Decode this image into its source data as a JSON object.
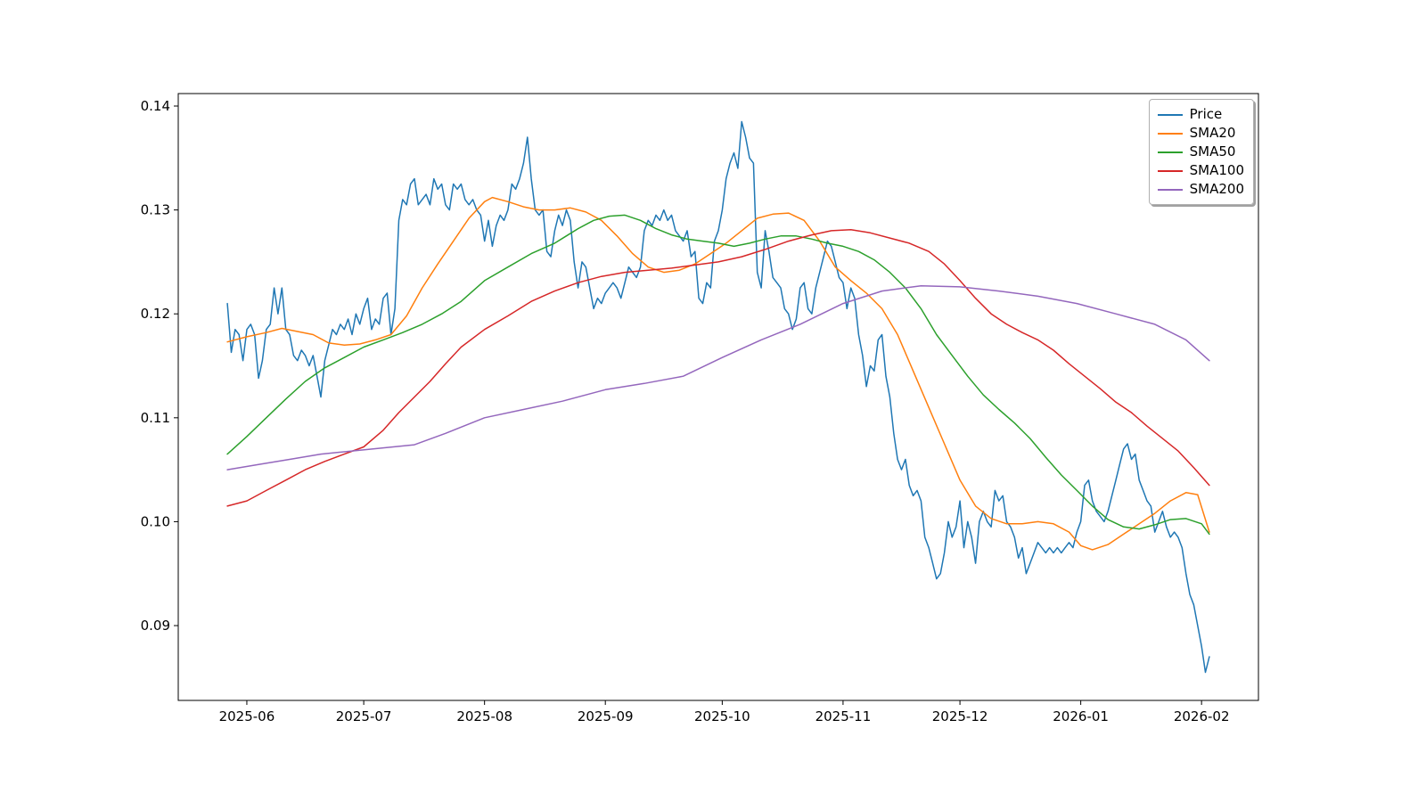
{
  "window": {
    "background": "#ffffff"
  },
  "chart_data": {
    "type": "line",
    "title": "",
    "xlabel": "",
    "ylabel": "",
    "x_axis": {
      "unit": "days",
      "day_zero_date": "2025-05-27",
      "tick_format": "YYYY-MM"
    },
    "xlim": [
      -12.6,
      264.6
    ],
    "ylim": [
      0.0828,
      0.1412
    ],
    "grid": false,
    "frame_color": "#000000",
    "x_ticks": [
      {
        "day": 5,
        "label": "2025-06"
      },
      {
        "day": 35,
        "label": "2025-07"
      },
      {
        "day": 66,
        "label": "2025-08"
      },
      {
        "day": 97,
        "label": "2025-09"
      },
      {
        "day": 127,
        "label": "2025-10"
      },
      {
        "day": 158,
        "label": "2025-11"
      },
      {
        "day": 188,
        "label": "2025-12"
      },
      {
        "day": 219,
        "label": "2026-01"
      },
      {
        "day": 250,
        "label": "2026-02"
      }
    ],
    "y_ticks": [
      {
        "value": 0.09,
        "label": "0.09"
      },
      {
        "value": 0.1,
        "label": "0.10"
      },
      {
        "value": 0.11,
        "label": "0.11"
      },
      {
        "value": 0.12,
        "label": "0.12"
      },
      {
        "value": 0.13,
        "label": "0.13"
      },
      {
        "value": 0.14,
        "label": "0.14"
      }
    ],
    "legend": {
      "position": "upper-right",
      "entries": [
        "Price",
        "SMA20",
        "SMA50",
        "SMA100",
        "SMA200"
      ]
    },
    "series": [
      {
        "name": "Price",
        "color": "#1f77b4",
        "values": [
          0.121,
          0.1163,
          0.1185,
          0.118,
          0.1155,
          0.1185,
          0.119,
          0.118,
          0.1138,
          0.1155,
          0.1185,
          0.119,
          0.1225,
          0.12,
          0.1225,
          0.1185,
          0.118,
          0.116,
          0.1155,
          0.1165,
          0.116,
          0.115,
          0.116,
          0.114,
          0.112,
          0.1155,
          0.117,
          0.1185,
          0.118,
          0.119,
          0.1185,
          0.1195,
          0.118,
          0.12,
          0.119,
          0.1205,
          0.1215,
          0.1185,
          0.1195,
          0.119,
          0.1215,
          0.122,
          0.118,
          0.1205,
          0.129,
          0.131,
          0.1305,
          0.1325,
          0.133,
          0.1305,
          0.131,
          0.1315,
          0.1305,
          0.133,
          0.132,
          0.1325,
          0.1305,
          0.13,
          0.1325,
          0.132,
          0.1325,
          0.131,
          0.1305,
          0.131,
          0.13,
          0.1295,
          0.127,
          0.129,
          0.1265,
          0.1285,
          0.1295,
          0.129,
          0.13,
          0.1325,
          0.132,
          0.133,
          0.1345,
          0.137,
          0.133,
          0.13,
          0.1295,
          0.13,
          0.126,
          0.1255,
          0.128,
          0.1295,
          0.1285,
          0.13,
          0.129,
          0.125,
          0.1225,
          0.125,
          0.1245,
          0.1225,
          0.1205,
          0.1215,
          0.121,
          0.122,
          0.1225,
          0.123,
          0.1225,
          0.1215,
          0.123,
          0.1245,
          0.124,
          0.1235,
          0.1245,
          0.128,
          0.129,
          0.1285,
          0.1295,
          0.129,
          0.13,
          0.129,
          0.1295,
          0.128,
          0.1275,
          0.127,
          0.128,
          0.1255,
          0.126,
          0.1215,
          0.121,
          0.123,
          0.1225,
          0.127,
          0.128,
          0.13,
          0.133,
          0.1345,
          0.1355,
          0.134,
          0.1385,
          0.137,
          0.135,
          0.1345,
          0.124,
          0.1225,
          0.128,
          0.126,
          0.1235,
          0.123,
          0.1225,
          0.1205,
          0.12,
          0.1185,
          0.1195,
          0.1225,
          0.123,
          0.1205,
          0.12,
          0.1225,
          0.124,
          0.1255,
          0.127,
          0.1265,
          0.125,
          0.1235,
          0.123,
          0.1205,
          0.1225,
          0.1215,
          0.118,
          0.116,
          0.113,
          0.115,
          0.1145,
          0.1175,
          0.118,
          0.114,
          0.112,
          0.1085,
          0.106,
          0.105,
          0.106,
          0.1035,
          0.1025,
          0.103,
          0.102,
          0.0985,
          0.0975,
          0.096,
          0.0945,
          0.095,
          0.097,
          0.1,
          0.0985,
          0.0995,
          0.102,
          0.0975,
          0.1,
          0.0985,
          0.096,
          0.1,
          0.101,
          0.1,
          0.0995,
          0.103,
          0.102,
          0.1025,
          0.1,
          0.0995,
          0.0985,
          0.0965,
          0.0975,
          0.095,
          0.096,
          0.097,
          0.098,
          0.0975,
          0.097,
          0.0975,
          0.097,
          0.0975,
          0.097,
          0.0975,
          0.098,
          0.0975,
          0.099,
          0.1,
          0.1035,
          0.104,
          0.102,
          0.101,
          0.1005,
          0.1,
          0.101,
          0.1025,
          0.104,
          0.1055,
          0.107,
          0.1075,
          0.106,
          0.1065,
          0.104,
          0.103,
          0.102,
          0.1015,
          0.099,
          0.1,
          0.101,
          0.0995,
          0.0985,
          0.099,
          0.0985,
          0.0975,
          0.095,
          0.093,
          0.092,
          0.09,
          0.088,
          0.0855,
          0.087
        ]
      },
      {
        "name": "SMA20",
        "color": "#ff7f0e",
        "points": [
          [
            0,
            0.1173
          ],
          [
            5,
            0.1178
          ],
          [
            10,
            0.1182
          ],
          [
            14,
            0.1186
          ],
          [
            18,
            0.1183
          ],
          [
            22,
            0.118
          ],
          [
            26,
            0.1172
          ],
          [
            30,
            0.117
          ],
          [
            34,
            0.1171
          ],
          [
            38,
            0.1175
          ],
          [
            42,
            0.118
          ],
          [
            46,
            0.1198
          ],
          [
            50,
            0.1225
          ],
          [
            54,
            0.1248
          ],
          [
            58,
            0.127
          ],
          [
            62,
            0.1292
          ],
          [
            66,
            0.1308
          ],
          [
            68,
            0.1312
          ],
          [
            72,
            0.1308
          ],
          [
            76,
            0.1303
          ],
          [
            80,
            0.13
          ],
          [
            84,
            0.13
          ],
          [
            88,
            0.1302
          ],
          [
            92,
            0.1298
          ],
          [
            96,
            0.129
          ],
          [
            100,
            0.1275
          ],
          [
            104,
            0.1258
          ],
          [
            108,
            0.1245
          ],
          [
            112,
            0.124
          ],
          [
            116,
            0.1242
          ],
          [
            120,
            0.1248
          ],
          [
            124,
            0.1258
          ],
          [
            128,
            0.1268
          ],
          [
            132,
            0.128
          ],
          [
            136,
            0.1292
          ],
          [
            140,
            0.1296
          ],
          [
            144,
            0.1297
          ],
          [
            148,
            0.129
          ],
          [
            152,
            0.127
          ],
          [
            156,
            0.1245
          ],
          [
            160,
            0.1232
          ],
          [
            164,
            0.122
          ],
          [
            168,
            0.1205
          ],
          [
            172,
            0.118
          ],
          [
            176,
            0.1145
          ],
          [
            180,
            0.111
          ],
          [
            184,
            0.1075
          ],
          [
            188,
            0.104
          ],
          [
            192,
            0.1015
          ],
          [
            196,
            0.1003
          ],
          [
            200,
            0.0998
          ],
          [
            204,
            0.0998
          ],
          [
            208,
            0.1
          ],
          [
            212,
            0.0998
          ],
          [
            216,
            0.099
          ],
          [
            219,
            0.0977
          ],
          [
            222,
            0.0973
          ],
          [
            226,
            0.0978
          ],
          [
            230,
            0.0988
          ],
          [
            234,
            0.0998
          ],
          [
            238,
            0.1008
          ],
          [
            242,
            0.102
          ],
          [
            246,
            0.1028
          ],
          [
            249,
            0.1026
          ],
          [
            252,
            0.099
          ]
        ]
      },
      {
        "name": "SMA50",
        "color": "#2ca02c",
        "points": [
          [
            0,
            0.1065
          ],
          [
            5,
            0.1082
          ],
          [
            10,
            0.11
          ],
          [
            15,
            0.1118
          ],
          [
            20,
            0.1135
          ],
          [
            25,
            0.1148
          ],
          [
            30,
            0.1158
          ],
          [
            35,
            0.1168
          ],
          [
            40,
            0.1175
          ],
          [
            45,
            0.1182
          ],
          [
            50,
            0.119
          ],
          [
            55,
            0.12
          ],
          [
            60,
            0.1212
          ],
          [
            66,
            0.1232
          ],
          [
            72,
            0.1245
          ],
          [
            78,
            0.1258
          ],
          [
            84,
            0.1268
          ],
          [
            90,
            0.1282
          ],
          [
            94,
            0.129
          ],
          [
            98,
            0.1294
          ],
          [
            102,
            0.1295
          ],
          [
            106,
            0.129
          ],
          [
            110,
            0.1282
          ],
          [
            114,
            0.1276
          ],
          [
            118,
            0.1272
          ],
          [
            122,
            0.127
          ],
          [
            126,
            0.1268
          ],
          [
            130,
            0.1265
          ],
          [
            134,
            0.1268
          ],
          [
            138,
            0.1272
          ],
          [
            142,
            0.1275
          ],
          [
            146,
            0.1275
          ],
          [
            150,
            0.1272
          ],
          [
            154,
            0.1268
          ],
          [
            158,
            0.1265
          ],
          [
            162,
            0.126
          ],
          [
            166,
            0.1252
          ],
          [
            170,
            0.124
          ],
          [
            174,
            0.1225
          ],
          [
            178,
            0.1205
          ],
          [
            182,
            0.118
          ],
          [
            186,
            0.116
          ],
          [
            190,
            0.114
          ],
          [
            194,
            0.1122
          ],
          [
            198,
            0.1108
          ],
          [
            202,
            0.1095
          ],
          [
            206,
            0.108
          ],
          [
            210,
            0.1062
          ],
          [
            214,
            0.1045
          ],
          [
            218,
            0.103
          ],
          [
            222,
            0.1015
          ],
          [
            226,
            0.1002
          ],
          [
            230,
            0.0995
          ],
          [
            234,
            0.0993
          ],
          [
            238,
            0.0997
          ],
          [
            242,
            0.1002
          ],
          [
            246,
            0.1003
          ],
          [
            250,
            0.0998
          ],
          [
            252,
            0.0988
          ]
        ]
      },
      {
        "name": "SMA100",
        "color": "#d62728",
        "points": [
          [
            0,
            0.1015
          ],
          [
            5,
            0.102
          ],
          [
            10,
            0.103
          ],
          [
            15,
            0.104
          ],
          [
            20,
            0.105
          ],
          [
            25,
            0.1058
          ],
          [
            30,
            0.1065
          ],
          [
            35,
            0.1072
          ],
          [
            40,
            0.1088
          ],
          [
            44,
            0.1105
          ],
          [
            48,
            0.112
          ],
          [
            52,
            0.1135
          ],
          [
            56,
            0.1152
          ],
          [
            60,
            0.1168
          ],
          [
            66,
            0.1185
          ],
          [
            72,
            0.1198
          ],
          [
            78,
            0.1212
          ],
          [
            84,
            0.1222
          ],
          [
            90,
            0.123
          ],
          [
            96,
            0.1236
          ],
          [
            102,
            0.124
          ],
          [
            108,
            0.1242
          ],
          [
            114,
            0.1244
          ],
          [
            120,
            0.1247
          ],
          [
            126,
            0.125
          ],
          [
            132,
            0.1255
          ],
          [
            138,
            0.1262
          ],
          [
            144,
            0.127
          ],
          [
            150,
            0.1276
          ],
          [
            155,
            0.128
          ],
          [
            160,
            0.1281
          ],
          [
            165,
            0.1278
          ],
          [
            170,
            0.1273
          ],
          [
            175,
            0.1268
          ],
          [
            180,
            0.126
          ],
          [
            184,
            0.1248
          ],
          [
            188,
            0.1232
          ],
          [
            192,
            0.1215
          ],
          [
            196,
            0.12
          ],
          [
            200,
            0.119
          ],
          [
            204,
            0.1182
          ],
          [
            208,
            0.1175
          ],
          [
            212,
            0.1165
          ],
          [
            216,
            0.1152
          ],
          [
            220,
            0.114
          ],
          [
            224,
            0.1128
          ],
          [
            228,
            0.1115
          ],
          [
            232,
            0.1105
          ],
          [
            236,
            0.1092
          ],
          [
            240,
            0.108
          ],
          [
            244,
            0.1068
          ],
          [
            248,
            0.1052
          ],
          [
            252,
            0.1035
          ]
        ]
      },
      {
        "name": "SMA200",
        "color": "#9467bd",
        "points": [
          [
            0,
            0.105
          ],
          [
            8,
            0.1055
          ],
          [
            16,
            0.106
          ],
          [
            24,
            0.1065
          ],
          [
            32,
            0.1068
          ],
          [
            40,
            0.1071
          ],
          [
            48,
            0.1074
          ],
          [
            56,
            0.1085
          ],
          [
            66,
            0.11
          ],
          [
            76,
            0.1108
          ],
          [
            86,
            0.1116
          ],
          [
            97,
            0.1127
          ],
          [
            107,
            0.1133
          ],
          [
            117,
            0.114
          ],
          [
            127,
            0.1158
          ],
          [
            137,
            0.1175
          ],
          [
            147,
            0.119
          ],
          [
            158,
            0.121
          ],
          [
            168,
            0.1222
          ],
          [
            178,
            0.1227
          ],
          [
            188,
            0.1226
          ],
          [
            198,
            0.1222
          ],
          [
            208,
            0.1217
          ],
          [
            218,
            0.121
          ],
          [
            228,
            0.12
          ],
          [
            238,
            0.119
          ],
          [
            246,
            0.1175
          ],
          [
            252,
            0.1155
          ]
        ]
      }
    ]
  }
}
